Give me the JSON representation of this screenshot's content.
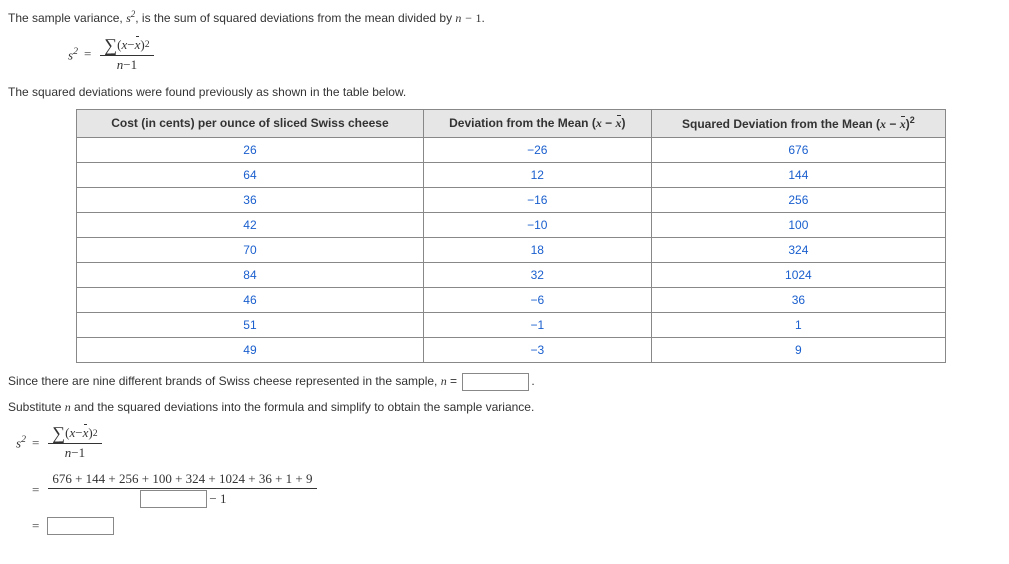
{
  "intro": {
    "line1_pre": "The sample variance, ",
    "line1_post": ", is the sum of squared deviations from the mean divided by ",
    "line1_end": "."
  },
  "formula1": {
    "lhs_base": "s",
    "lhs_sup": "2",
    "eq": "=",
    "sigma": "∑",
    "paren_open": "(",
    "x": "x",
    "minus": " − ",
    "paren_close_sq": ")",
    "sq": "2",
    "den_n": "n",
    "den_minus": " − ",
    "den_one": "1"
  },
  "line2": "The squared deviations were found previously as shown in the table below.",
  "table": {
    "headers": {
      "col1": "Cost (in cents) per ounce of sliced Swiss cheese",
      "col2_pre": "Deviation from the Mean (",
      "col2_x": "x",
      "col2_minus": " − ",
      "col2_post": ")",
      "col3_pre": "Squared Deviation from the Mean (",
      "col3_x": "x",
      "col3_minus": " − ",
      "col3_post": ")",
      "col3_sup": "2"
    },
    "rows": [
      {
        "cost": "26",
        "dev": "−26",
        "sq": "676"
      },
      {
        "cost": "64",
        "dev": "12",
        "sq": "144"
      },
      {
        "cost": "36",
        "dev": "−16",
        "sq": "256"
      },
      {
        "cost": "42",
        "dev": "−10",
        "sq": "100"
      },
      {
        "cost": "70",
        "dev": "18",
        "sq": "324"
      },
      {
        "cost": "84",
        "dev": "32",
        "sq": "1024"
      },
      {
        "cost": "46",
        "dev": "−6",
        "sq": "36"
      },
      {
        "cost": "51",
        "dev": "−1",
        "sq": "1"
      },
      {
        "cost": "49",
        "dev": "−3",
        "sq": "9"
      }
    ]
  },
  "after_table": {
    "line3_pre": "Since there are nine different brands of Swiss cheese represented in the sample, ",
    "line3_n": "n",
    "line3_eq": " = ",
    "line3_post": ".",
    "line4": "Substitute ",
    "line4_n": "n",
    "line4_post": " and the squared deviations into the formula and simplify to obtain the sample variance."
  },
  "calc": {
    "numerator": "676 + 144 + 256 + 100 + 324 + 1024 + 36 + 1 + 9",
    "minus1": " − 1"
  }
}
